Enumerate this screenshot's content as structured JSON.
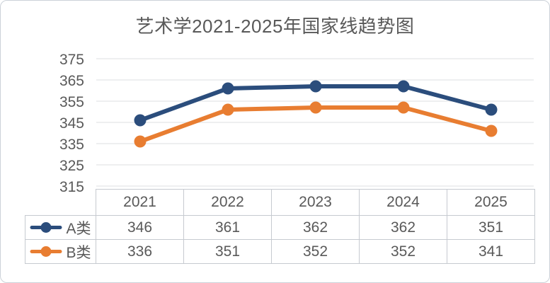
{
  "title": "艺术学2021-2025年国家线趋势图",
  "chart_data": {
    "type": "line",
    "title": "艺术学2021-2025年国家线趋势图",
    "categories": [
      "2021",
      "2022",
      "2023",
      "2024",
      "2025"
    ],
    "series": [
      {
        "name": "A类",
        "color": "#2b4d7c",
        "values": [
          346,
          361,
          362,
          362,
          351
        ]
      },
      {
        "name": "B类",
        "color": "#e87d31",
        "values": [
          336,
          351,
          352,
          352,
          341
        ]
      }
    ],
    "yticks": [
      375,
      365,
      355,
      345,
      335,
      325,
      315
    ],
    "ylim": [
      315,
      375
    ],
    "grid": true,
    "gridline_color": "#e8eaec",
    "axis_label_color": "#595959",
    "legend_position": "table-bottom",
    "marker": "circle"
  },
  "table": {
    "border_color": "#c6cad0",
    "text_color": "#595959"
  }
}
